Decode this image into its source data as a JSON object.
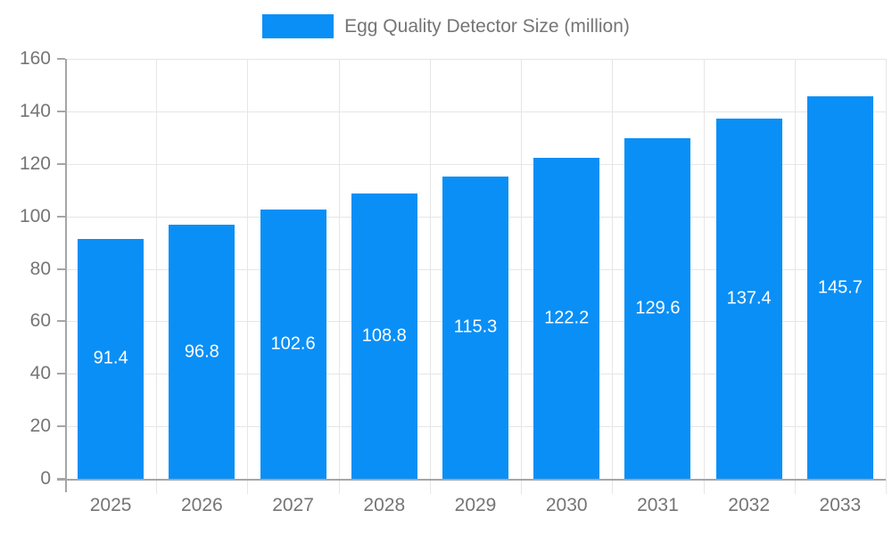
{
  "chart_data": {
    "type": "bar",
    "title": "Egg Quality Detector Size (million)",
    "legend_label": "Egg Quality Detector Size (million)",
    "legend_position": "top",
    "categories": [
      "2025",
      "2026",
      "2027",
      "2028",
      "2029",
      "2030",
      "2031",
      "2032",
      "2033"
    ],
    "values": [
      91.4,
      96.8,
      102.6,
      108.8,
      115.3,
      122.2,
      129.6,
      137.4,
      145.7
    ],
    "value_labels": [
      "91.4",
      "96.8",
      "102.6",
      "108.8",
      "115.3",
      "122.2",
      "129.6",
      "137.4",
      "145.7"
    ],
    "xlabel": "",
    "ylabel": "",
    "ylim": [
      0,
      160
    ],
    "ytick_step": 20,
    "ytick_labels": [
      "0",
      "20",
      "40",
      "60",
      "80",
      "100",
      "120",
      "140",
      "160"
    ],
    "grid": true,
    "colors": {
      "bar": "#0a8ff6",
      "axis": "#a6a6a6",
      "grid": "#e6e6e6",
      "tick_label": "#757575",
      "value_label": "#ffffff"
    }
  }
}
